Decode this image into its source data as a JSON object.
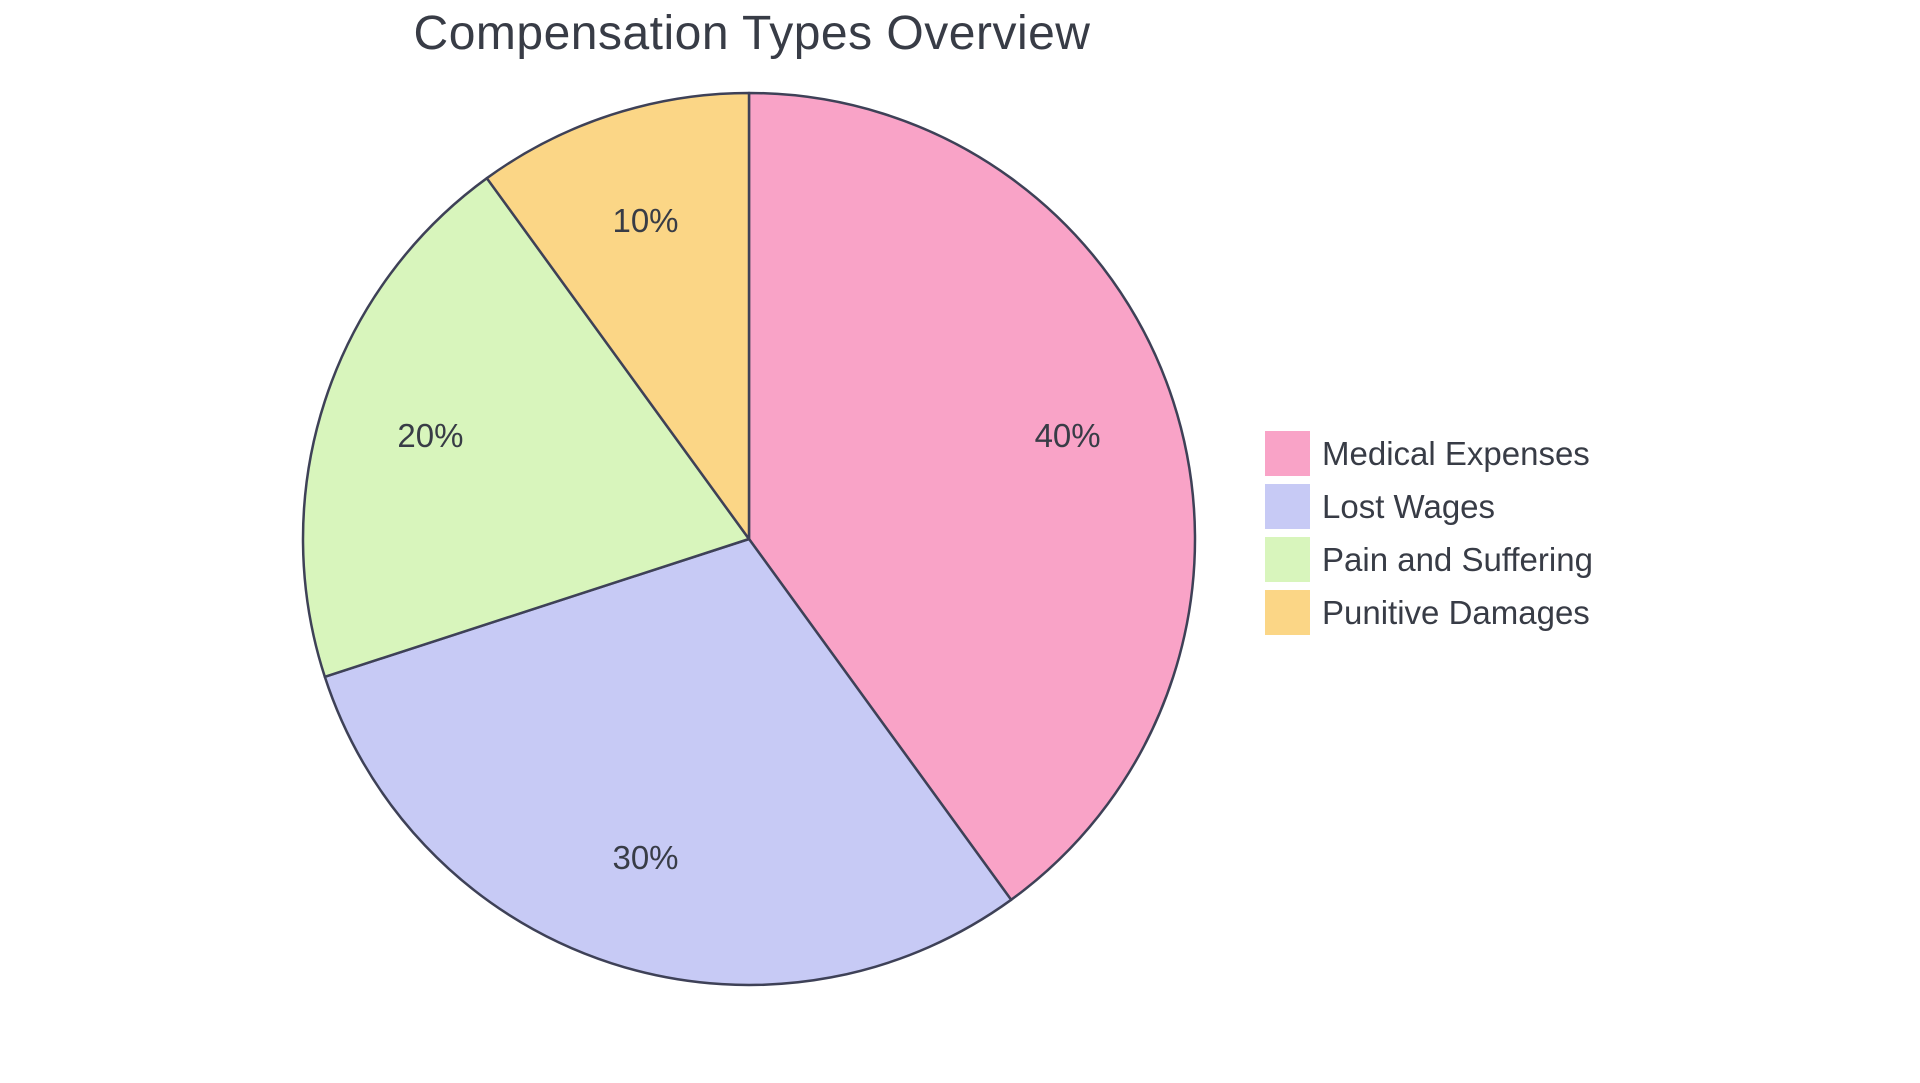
{
  "chart_data": {
    "type": "pie",
    "title": "Compensation Types Overview",
    "categories": [
      "Medical Expenses",
      "Lost Wages",
      "Pain and Suffering",
      "Punitive Damages"
    ],
    "values": [
      40,
      30,
      20,
      10
    ],
    "slice_labels": [
      "40%",
      "30%",
      "20%",
      "10%"
    ],
    "colors": [
      "#F9A3C7",
      "#C7CAF5",
      "#D8F5BC",
      "#FBD686"
    ],
    "slice_border_color": "#3E4157",
    "label_color": "#383C46",
    "title_color": "#383C46",
    "start_angle": "top",
    "direction": "clockwise",
    "legend_position": "right",
    "background": "#FFFFFF"
  },
  "legend": {
    "items": [
      {
        "label": "Medical Expenses",
        "color": "#F9A3C7"
      },
      {
        "label": "Lost Wages",
        "color": "#C7CAF5"
      },
      {
        "label": "Pain and Suffering",
        "color": "#D8F5BC"
      },
      {
        "label": "Punitive Damages",
        "color": "#FBD686"
      }
    ]
  }
}
